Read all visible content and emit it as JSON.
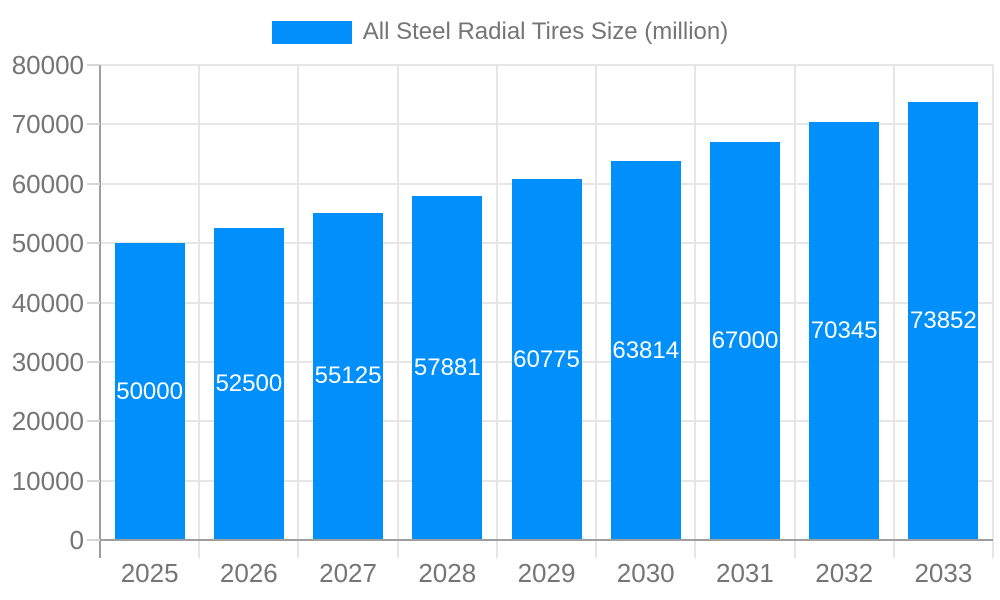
{
  "chart_data": {
    "type": "bar",
    "title": "All Steel Radial Tires Size (million)",
    "legend": {
      "label": "All Steel Radial Tires Size (million)",
      "position": "top-center",
      "marker": "rect"
    },
    "categories": [
      "2025",
      "2026",
      "2027",
      "2028",
      "2029",
      "2030",
      "2031",
      "2032",
      "2033"
    ],
    "series": [
      {
        "name": "All Steel Radial Tires Size (million)",
        "values": [
          50000,
          52500,
          55125,
          57881,
          60775,
          63814,
          67000,
          70345,
          73852
        ]
      }
    ],
    "bar_value_labels": [
      "50000",
      "52500",
      "55125",
      "57881",
      "60775",
      "63814",
      "67000",
      "70345",
      "73852"
    ],
    "xlabel": "",
    "ylabel": "",
    "ylim": [
      0,
      80000
    ],
    "yticks": [
      0,
      10000,
      20000,
      30000,
      40000,
      50000,
      60000,
      70000,
      80000
    ],
    "ytick_labels": [
      "0",
      "10000",
      "20000",
      "30000",
      "40000",
      "50000",
      "60000",
      "70000",
      "80000"
    ],
    "grid": true,
    "value_labels_inside_bars": true,
    "colors": {
      "bar": "#008ffb",
      "axis_text": "#757575",
      "value_text": "#ffffff",
      "gridline": "#e6e6e6",
      "axis_line": "#9e9e9e",
      "tick": "#d6d6d6",
      "background": "#ffffff"
    }
  }
}
